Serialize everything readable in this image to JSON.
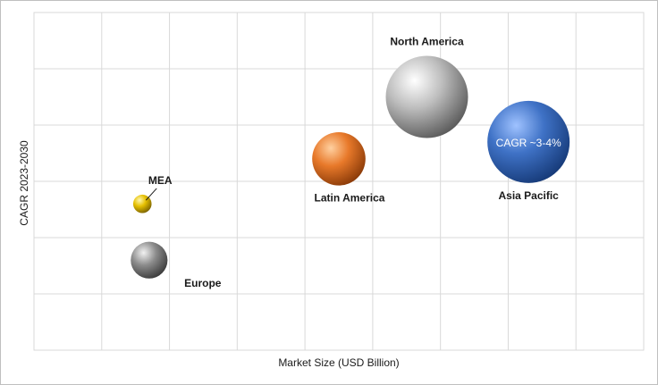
{
  "chart_data": {
    "type": "bubble",
    "xlabel": "Market Size (USD Billion)",
    "ylabel": "CAGR 2023-2030",
    "grid": true,
    "legend": "none",
    "series": [
      {
        "label": "North America",
        "x": 5.8,
        "y": 4.5,
        "size": 1.0,
        "color": "#a6a6a6"
      },
      {
        "label": "Asia Pacific",
        "x": 7.3,
        "y": 3.7,
        "size": 1.0,
        "color": "#3d6fc1",
        "annotation": "CAGR ~3-4%"
      },
      {
        "label": "Latin America",
        "x": 4.5,
        "y": 3.4,
        "size": 0.42,
        "color": "#e8792a"
      },
      {
        "label": "MEA",
        "x": 1.6,
        "y": 2.6,
        "size": 0.05,
        "color": "#e6c000"
      },
      {
        "label": "Europe",
        "x": 1.7,
        "y": 1.6,
        "size": 0.2,
        "color": "#8c8c8c"
      }
    ]
  }
}
